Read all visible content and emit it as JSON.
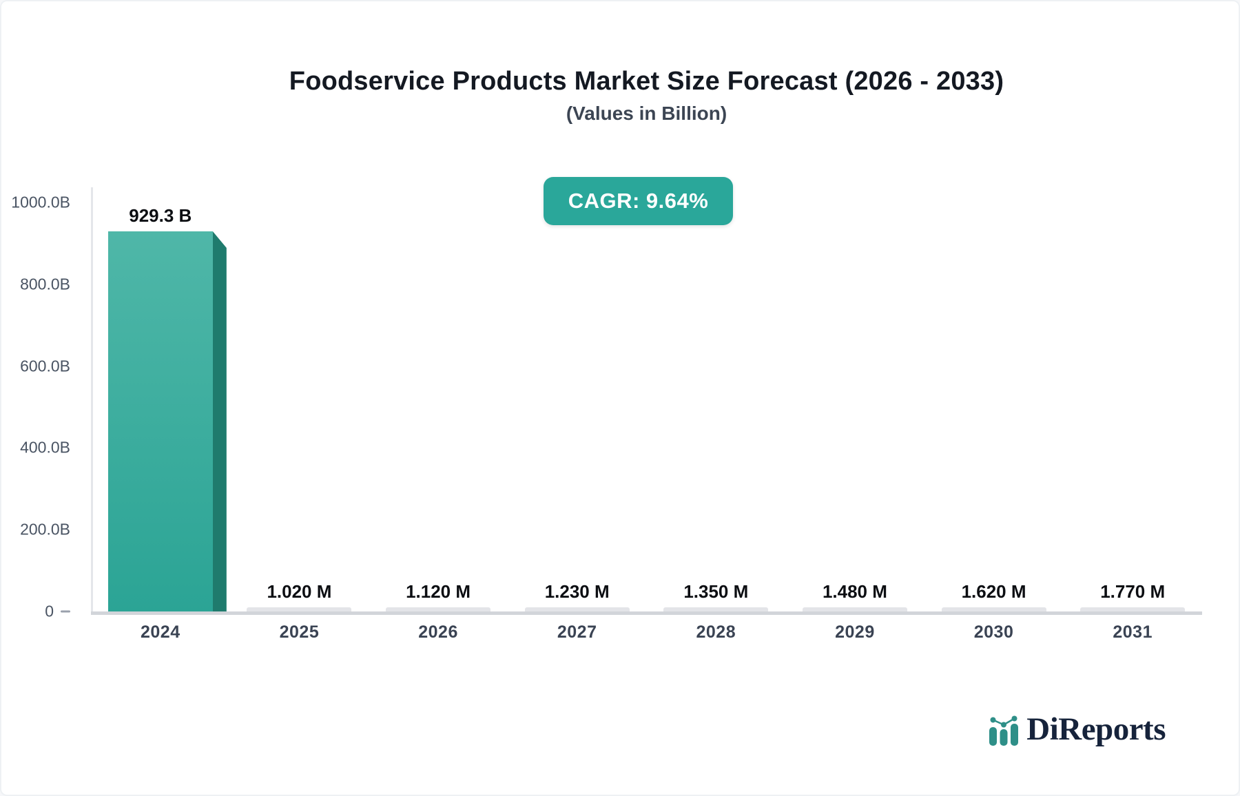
{
  "badge": {
    "label": "CAGR: 9.64%"
  },
  "logo": {
    "text": "DiReports",
    "icon": "bar-line-chart-icon"
  },
  "colors": {
    "badge_bg": "#2AA79A",
    "bar_top": "#4FB7A8",
    "bar_bottom": "#2BA495",
    "bar_side": "#1F7B6D",
    "tiny_bar": "#E3E4E8",
    "axis_line": "#D2D5DA",
    "grid_line": "#E4E6EA",
    "title_color": "#141922",
    "subtitle_color": "#3C4553",
    "tick_color": "#4A5463",
    "year_color": "#3A4353",
    "label_color": "#0C0E12",
    "logo_navy": "#16233B",
    "logo_teal": "#2E8F88",
    "card_border": "#EEF1F4"
  },
  "chart_data": {
    "type": "bar",
    "title": "Foodservice Products Market Size Forecast (2026 - 2033)",
    "subtitle": "(Values in Billion)",
    "cagr_percent": 9.64,
    "categories": [
      "2024",
      "2025",
      "2026",
      "2027",
      "2028",
      "2029",
      "2030",
      "2031"
    ],
    "values": [
      929.3,
      1.02,
      1.12,
      1.23,
      1.35,
      1.48,
      1.62,
      1.77
    ],
    "value_units": [
      "B",
      "M",
      "M",
      "M",
      "M",
      "M",
      "M",
      "M"
    ],
    "value_labels": [
      "929.3 B",
      "1.020 M",
      "1.120 M",
      "1.230 M",
      "1.350 M",
      "1.480 M",
      "1.620 M",
      "1.770 M"
    ],
    "ylim": [
      0,
      1000
    ],
    "ytick_values": [
      1000,
      800,
      600,
      400,
      200,
      0
    ],
    "ytick_labels": [
      "1000.0B",
      "800.0B",
      "600.0B",
      "400.0B",
      "200.0B",
      "0"
    ],
    "xlabel": "",
    "ylabel": "",
    "legend": "none",
    "grid": "off",
    "bar_style": "3d-teal"
  }
}
